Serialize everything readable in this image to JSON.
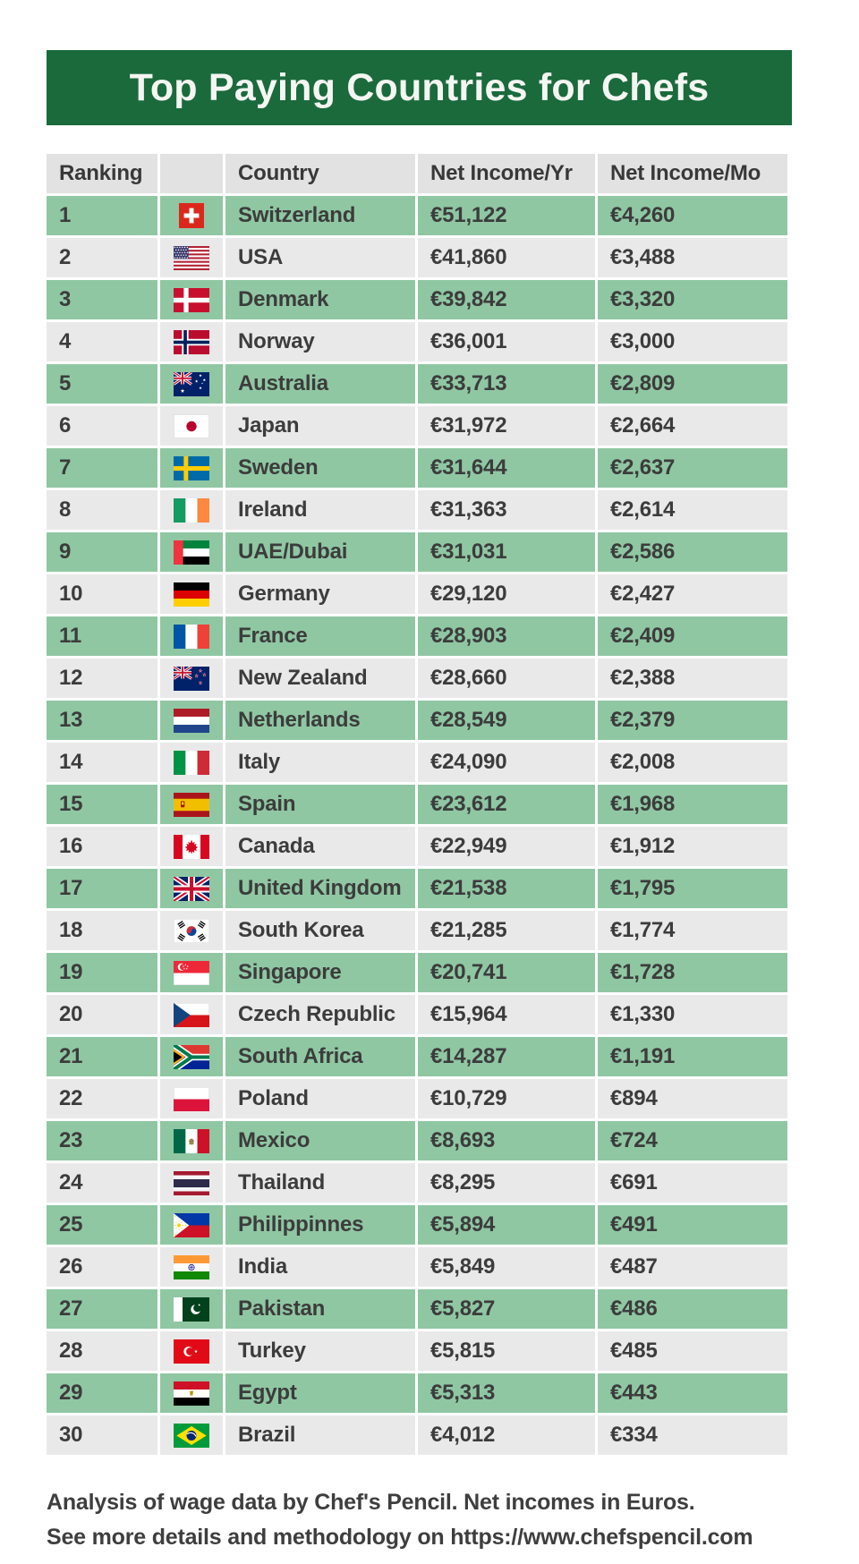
{
  "title": "Top Paying Countries for Chefs",
  "colors": {
    "title_band": "#1a6a3c",
    "row_green": "#8fc7a3",
    "row_gray": "#e9e9e9",
    "header_gray": "#e2e2e2",
    "text": "#3c3c3c"
  },
  "table": {
    "headers": [
      "Ranking",
      "",
      "Country",
      "Net Income/Yr",
      "Net Income/Mo"
    ],
    "rows": [
      {
        "rank": "1",
        "flag": "switzerland",
        "country": "Switzerland",
        "yr": "€51,122",
        "mo": "€4,260"
      },
      {
        "rank": "2",
        "flag": "usa",
        "country": "USA",
        "yr": "€41,860",
        "mo": "€3,488"
      },
      {
        "rank": "3",
        "flag": "denmark",
        "country": "Denmark",
        "yr": "€39,842",
        "mo": "€3,320"
      },
      {
        "rank": "4",
        "flag": "norway",
        "country": "Norway",
        "yr": "€36,001",
        "mo": "€3,000"
      },
      {
        "rank": "5",
        "flag": "australia",
        "country": "Australia",
        "yr": "€33,713",
        "mo": "€2,809"
      },
      {
        "rank": "6",
        "flag": "japan",
        "country": "Japan",
        "yr": "€31,972",
        "mo": "€2,664"
      },
      {
        "rank": "7",
        "flag": "sweden",
        "country": "Sweden",
        "yr": "€31,644",
        "mo": "€2,637"
      },
      {
        "rank": "8",
        "flag": "ireland",
        "country": "Ireland",
        "yr": "€31,363",
        "mo": "€2,614"
      },
      {
        "rank": "9",
        "flag": "uae",
        "country": "UAE/Dubai",
        "yr": "€31,031",
        "mo": "€2,586"
      },
      {
        "rank": "10",
        "flag": "germany",
        "country": "Germany",
        "yr": "€29,120",
        "mo": "€2,427"
      },
      {
        "rank": "11",
        "flag": "france",
        "country": "France",
        "yr": "€28,903",
        "mo": "€2,409"
      },
      {
        "rank": "12",
        "flag": "new-zealand",
        "country": "New Zealand",
        "yr": "€28,660",
        "mo": "€2,388"
      },
      {
        "rank": "13",
        "flag": "netherlands",
        "country": "Netherlands",
        "yr": "€28,549",
        "mo": "€2,379"
      },
      {
        "rank": "14",
        "flag": "italy",
        "country": "Italy",
        "yr": "€24,090",
        "mo": "€2,008"
      },
      {
        "rank": "15",
        "flag": "spain",
        "country": "Spain",
        "yr": "€23,612",
        "mo": "€1,968"
      },
      {
        "rank": "16",
        "flag": "canada",
        "country": "Canada",
        "yr": "€22,949",
        "mo": "€1,912"
      },
      {
        "rank": "17",
        "flag": "united-kingdom",
        "country": "United Kingdom",
        "yr": "€21,538",
        "mo": "€1,795"
      },
      {
        "rank": "18",
        "flag": "south-korea",
        "country": "South Korea",
        "yr": "€21,285",
        "mo": "€1,774"
      },
      {
        "rank": "19",
        "flag": "singapore",
        "country": "Singapore",
        "yr": "€20,741",
        "mo": "€1,728"
      },
      {
        "rank": "20",
        "flag": "czech-republic",
        "country": "Czech Republic",
        "yr": "€15,964",
        "mo": "€1,330"
      },
      {
        "rank": "21",
        "flag": "south-africa",
        "country": "South Africa",
        "yr": "€14,287",
        "mo": "€1,191"
      },
      {
        "rank": "22",
        "flag": "poland",
        "country": "Poland",
        "yr": "€10,729",
        "mo": "€894"
      },
      {
        "rank": "23",
        "flag": "mexico",
        "country": "Mexico",
        "yr": "€8,693",
        "mo": "€724"
      },
      {
        "rank": "24",
        "flag": "thailand",
        "country": "Thailand",
        "yr": "€8,295",
        "mo": "€691"
      },
      {
        "rank": "25",
        "flag": "philippines",
        "country": "Philippinnes",
        "yr": "€5,894",
        "mo": "€491"
      },
      {
        "rank": "26",
        "flag": "india",
        "country": "India",
        "yr": "€5,849",
        "mo": "€487"
      },
      {
        "rank": "27",
        "flag": "pakistan",
        "country": "Pakistan",
        "yr": "€5,827",
        "mo": "€486"
      },
      {
        "rank": "28",
        "flag": "turkey",
        "country": "Turkey",
        "yr": "€5,815",
        "mo": "€485"
      },
      {
        "rank": "29",
        "flag": "egypt",
        "country": "Egypt",
        "yr": "€5,313",
        "mo": "€443"
      },
      {
        "rank": "30",
        "flag": "brazil",
        "country": "Brazil",
        "yr": "€4,012",
        "mo": "€334"
      }
    ]
  },
  "footer": {
    "line1": "Analysis of wage data by Chef's Pencil. Net incomes in Euros.",
    "line2": "See more details and methodology on https://www.chefspencil.com"
  },
  "chart_data": {
    "type": "table",
    "title": "Top Paying Countries for Chefs",
    "columns": [
      "Ranking",
      "Country",
      "Net Income/Yr (EUR)",
      "Net Income/Mo (EUR)"
    ],
    "rows": [
      [
        1,
        "Switzerland",
        51122,
        4260
      ],
      [
        2,
        "USA",
        41860,
        3488
      ],
      [
        3,
        "Denmark",
        39842,
        3320
      ],
      [
        4,
        "Norway",
        36001,
        3000
      ],
      [
        5,
        "Australia",
        33713,
        2809
      ],
      [
        6,
        "Japan",
        31972,
        2664
      ],
      [
        7,
        "Sweden",
        31644,
        2637
      ],
      [
        8,
        "Ireland",
        31363,
        2614
      ],
      [
        9,
        "UAE/Dubai",
        31031,
        2586
      ],
      [
        10,
        "Germany",
        29120,
        2427
      ],
      [
        11,
        "France",
        28903,
        2409
      ],
      [
        12,
        "New Zealand",
        28660,
        2388
      ],
      [
        13,
        "Netherlands",
        28549,
        2379
      ],
      [
        14,
        "Italy",
        24090,
        2008
      ],
      [
        15,
        "Spain",
        23612,
        1968
      ],
      [
        16,
        "Canada",
        22949,
        1912
      ],
      [
        17,
        "United Kingdom",
        21538,
        1795
      ],
      [
        18,
        "South Korea",
        21285,
        1774
      ],
      [
        19,
        "Singapore",
        20741,
        1728
      ],
      [
        20,
        "Czech Republic",
        15964,
        1330
      ],
      [
        21,
        "South Africa",
        14287,
        1191
      ],
      [
        22,
        "Poland",
        10729,
        894
      ],
      [
        23,
        "Mexico",
        8693,
        724
      ],
      [
        24,
        "Thailand",
        8295,
        691
      ],
      [
        25,
        "Philippinnes",
        5894,
        491
      ],
      [
        26,
        "India",
        5849,
        487
      ],
      [
        27,
        "Pakistan",
        5827,
        486
      ],
      [
        28,
        "Turkey",
        5815,
        485
      ],
      [
        29,
        "Egypt",
        5313,
        443
      ],
      [
        30,
        "Brazil",
        4012,
        334
      ]
    ]
  }
}
